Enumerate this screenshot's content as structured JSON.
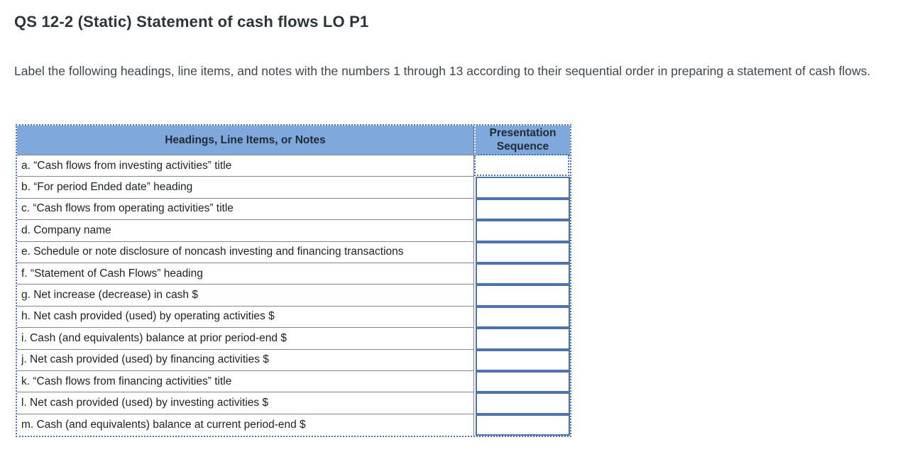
{
  "page": {
    "title": "QS 12-2 (Static) Statement of cash flows LO P1",
    "instructions": "Label the following headings, line items, and notes with the numbers 1 through 13 according to their sequential order in preparing a statement of cash flows."
  },
  "colors": {
    "header_bg": "#7fa8dc",
    "header_text": "#212b36",
    "table_dotted_border": "#4472c4",
    "answer_box_border": "#4e73ac",
    "grid_line": "#808589"
  },
  "table": {
    "col_items_header": "Headings, Line Items, or Notes",
    "col_sequence_header": "Presentation\nSequence",
    "rows": [
      {
        "key": "a",
        "label": "a. “Cash flows from investing activities” title",
        "value": "",
        "input": "active-empty"
      },
      {
        "key": "b",
        "label": "b. “For period Ended date” heading",
        "value": "",
        "input": "dropdown"
      },
      {
        "key": "c",
        "label": "c. “Cash flows from operating activities” title",
        "value": "",
        "input": "dropdown"
      },
      {
        "key": "d",
        "label": "d. Company name",
        "value": "",
        "input": "dropdown"
      },
      {
        "key": "e",
        "label": "e. Schedule or note disclosure of noncash investing and financing transactions",
        "value": "",
        "input": "dropdown"
      },
      {
        "key": "f",
        "label": "f. “Statement of Cash Flows” heading",
        "value": "",
        "input": "dropdown"
      },
      {
        "key": "g",
        "label": "g. Net increase (decrease) in cash $",
        "value": "",
        "input": "dropdown"
      },
      {
        "key": "h",
        "label": "h. Net cash provided (used) by operating activities $",
        "value": "",
        "input": "dropdown"
      },
      {
        "key": "i",
        "label": "i. Cash (and equivalents) balance at prior period-end $",
        "value": "",
        "input": "dropdown"
      },
      {
        "key": "j",
        "label": "j. Net cash provided (used) by financing activities $",
        "value": "",
        "input": "dropdown"
      },
      {
        "key": "k",
        "label": "k. “Cash flows from financing activities” title",
        "value": "",
        "input": "dropdown"
      },
      {
        "key": "l",
        "label": "l. Net cash provided (used) by investing activities $",
        "value": "",
        "input": "dropdown"
      },
      {
        "key": "m",
        "label": "m. Cash (and equivalents) balance at current period-end $",
        "value": "",
        "input": "dropdown"
      }
    ]
  }
}
